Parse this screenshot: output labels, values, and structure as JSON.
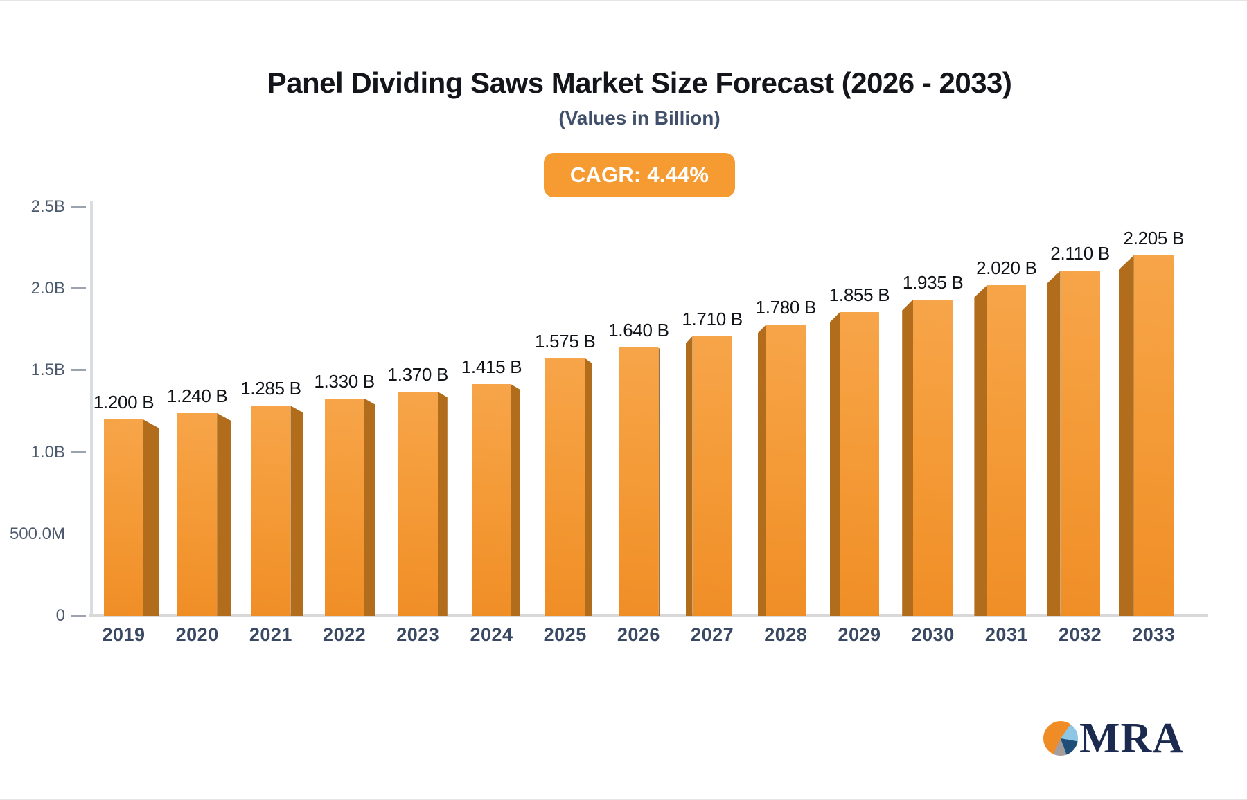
{
  "header": {
    "title": "Panel Dividing Saws Market Size Forecast (2026 - 2033)",
    "subtitle": "(Values in Billion)",
    "badge_label": "CAGR: 4.44%"
  },
  "y_axis": {
    "ticks": [
      {
        "label": "2.5B",
        "value": 2.5,
        "dash": true
      },
      {
        "label": "2.0B",
        "value": 2.0,
        "dash": true
      },
      {
        "label": "1.5B",
        "value": 1.5,
        "dash": true
      },
      {
        "label": "1.0B",
        "value": 1.0,
        "dash": true
      },
      {
        "label": "500.0M",
        "value": 0.5,
        "dash": false
      },
      {
        "label": "0",
        "value": 0.0,
        "dash": true
      }
    ]
  },
  "chart_data": {
    "type": "bar",
    "title": "Panel Dividing Saws Market Size Forecast (2026 - 2033)",
    "subtitle": "(Values in Billion)",
    "cagr": "4.44%",
    "unit": "Billion USD",
    "categories": [
      "2019",
      "2020",
      "2021",
      "2022",
      "2023",
      "2024",
      "2025",
      "2026",
      "2027",
      "2028",
      "2029",
      "2030",
      "2031",
      "2032",
      "2033"
    ],
    "values": [
      1.2,
      1.24,
      1.285,
      1.33,
      1.37,
      1.415,
      1.575,
      1.64,
      1.71,
      1.78,
      1.855,
      1.935,
      2.02,
      2.11,
      2.205
    ],
    "value_labels": [
      "1.200 B",
      "1.240 B",
      "1.285 B",
      "1.330 B",
      "1.370 B",
      "1.415 B",
      "1.575 B",
      "1.640 B",
      "1.710 B",
      "1.780 B",
      "1.855 B",
      "1.935 B",
      "2.020 B",
      "2.110 B",
      "2.205 B"
    ],
    "xlabel": "",
    "ylabel": "",
    "ylim": [
      0,
      2.5
    ],
    "grid": false,
    "legend": false
  },
  "logo": {
    "text": "MRA"
  },
  "colors": {
    "bar_front_top": "#f7a54a",
    "bar_front_bottom": "#f08e26",
    "bar_side": "#b16c1c",
    "badge_bg": "#f69a32",
    "axis_label": "#4d5a6e",
    "year_label": "#394963",
    "value_label": "#101317",
    "logo_navy": "#1b2a4e",
    "logo_orange": "#f08c26",
    "logo_lightblue": "#8ec7e6",
    "logo_gray": "#a39d9d"
  }
}
